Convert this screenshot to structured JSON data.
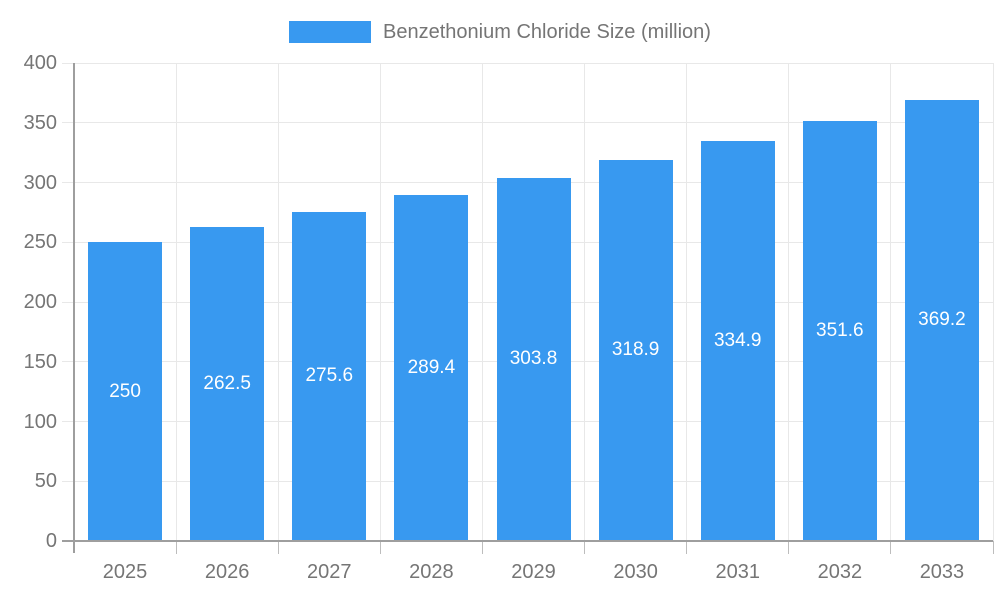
{
  "chart_data": {
    "type": "bar",
    "title": "Benzethonium Chloride Size (million)",
    "legend": {
      "label": "Benzethonium Chloride Size (million)",
      "position": "top"
    },
    "categories": [
      "2025",
      "2026",
      "2027",
      "2028",
      "2029",
      "2030",
      "2031",
      "2032",
      "2033"
    ],
    "values": [
      250,
      262.5,
      275.6,
      289.4,
      303.8,
      318.9,
      334.9,
      351.6,
      369.2
    ],
    "value_labels": [
      "250",
      "262.5",
      "275.6",
      "289.4",
      "303.8",
      "318.9",
      "334.9",
      "351.6",
      "369.2"
    ],
    "xlabel": "",
    "ylabel": "",
    "ylim": [
      0,
      400
    ],
    "y_ticks": [
      0,
      50,
      100,
      150,
      200,
      250,
      300,
      350,
      400
    ],
    "grid": true,
    "colors": {
      "bar": "#3899F0",
      "grid": "#E8E8E8",
      "axis": "#9E9E9E",
      "tick": "#BDBDBD",
      "axis_label": "#757575",
      "value_label": "#FFFFFF",
      "background": "#FFFFFF"
    }
  }
}
